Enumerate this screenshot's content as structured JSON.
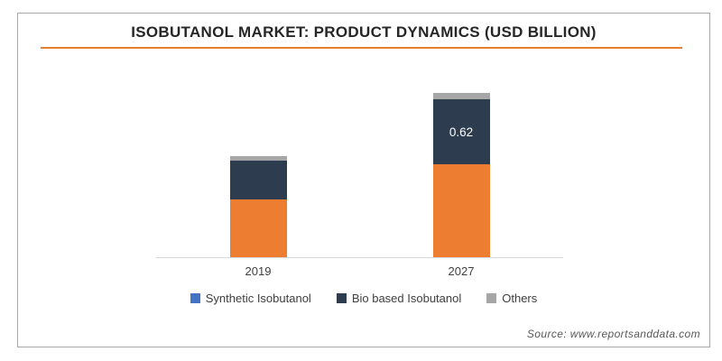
{
  "page": {
    "source_note": "Source: www.reportsanddata.com"
  },
  "chart_data": {
    "type": "bar",
    "stacked": true,
    "title": "ISOBUTANOL MARKET: PRODUCT DYNAMICS (USD BILLION)",
    "categories": [
      "2019",
      "2027"
    ],
    "series": [
      {
        "name": "Synthetic Isobutanol",
        "values": [
          0.55,
          0.88
        ],
        "bar_color": "#ED7D31",
        "legend_color": "#4472C4"
      },
      {
        "name": "Bio based Isobutanol",
        "values": [
          0.37,
          0.62
        ],
        "bar_color": "#2E3C50",
        "legend_color": "#2E3C50"
      },
      {
        "name": "Others",
        "values": [
          0.04,
          0.06
        ],
        "bar_color": "#A6A6A6",
        "legend_color": "#A6A6A6"
      }
    ],
    "data_labels": [
      {
        "category_index": 1,
        "series_index": 1,
        "text": "0.62"
      }
    ],
    "ylim": [
      0,
      1.8
    ],
    "grid": false,
    "legend_position": "bottom",
    "accent_line_color": "#E87D31",
    "axis_color": "#D9D9D9"
  }
}
